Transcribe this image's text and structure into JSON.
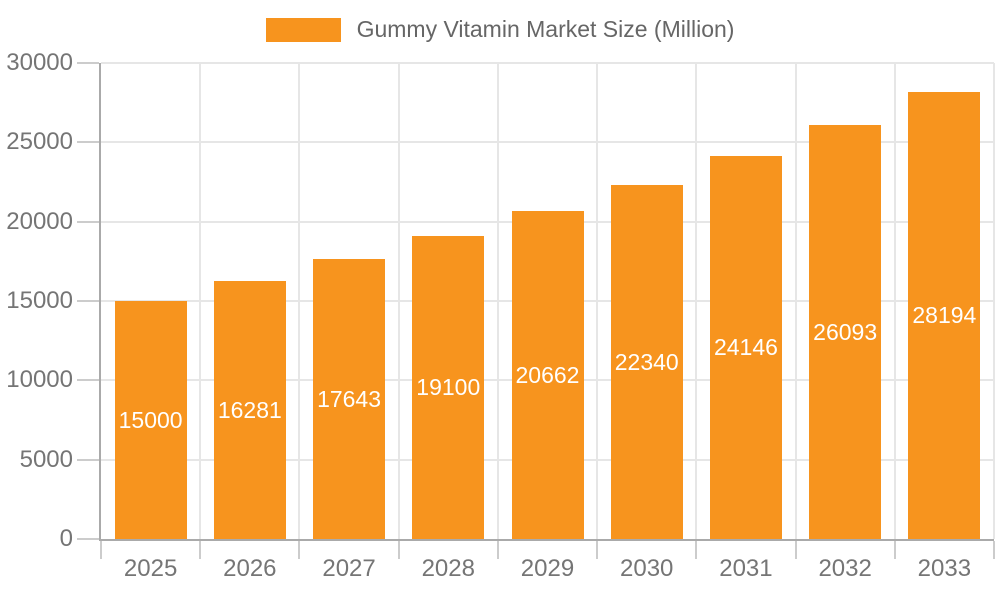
{
  "legend": {
    "label": "Gummy Vitamin Market Size (Million)"
  },
  "chart_data": {
    "type": "bar",
    "title": "Gummy Vitamin Market Size (Million)",
    "categories": [
      "2025",
      "2026",
      "2027",
      "2028",
      "2029",
      "2030",
      "2031",
      "2032",
      "2033"
    ],
    "values": [
      15000,
      16281,
      17643,
      19100,
      20662,
      22340,
      24146,
      26093,
      28194
    ],
    "value_labels": [
      "15000",
      "16281",
      "17643",
      "19100",
      "20662",
      "22340",
      "24146",
      "26093",
      "28194"
    ],
    "xlabel": "",
    "ylabel": "",
    "ylim": [
      0,
      30000
    ],
    "ytick_step": 5000,
    "ytick_labels": [
      "0",
      "5000",
      "10000",
      "15000",
      "20000",
      "25000",
      "30000"
    ],
    "grid": true,
    "legend_position": "top",
    "value_label_position": "inside-center"
  },
  "colors": {
    "bar": "#F7941E",
    "axis_line": "#aaaaaa",
    "tick": "#cccccc",
    "gridline": "#e6e6e6",
    "axis_text": "#757575",
    "legend_text": "#666666",
    "value_text": "#ffffff",
    "background": "#ffffff"
  }
}
